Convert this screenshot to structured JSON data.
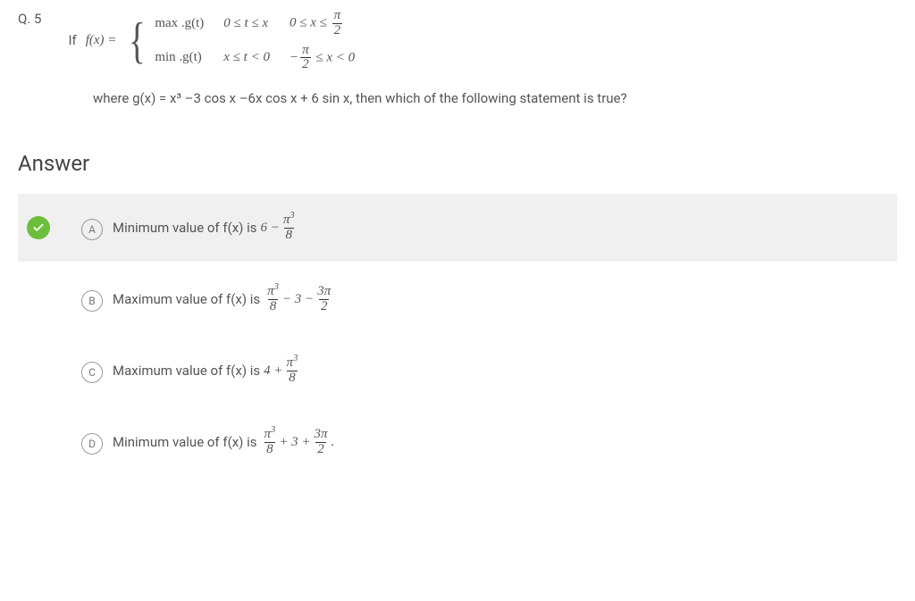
{
  "question": {
    "number": "Q. 5",
    "if_text": "If ",
    "fx_eq": "f(x) =",
    "piece1": {
      "expr": "max .g(t)",
      "cond1": "0 ≤ t ≤ x",
      "cond2_lead": "0 ≤ x ≤",
      "cond2_frac_num": "π",
      "cond2_frac_den": "2"
    },
    "piece2": {
      "expr": "min .g(t)",
      "cond1": "x ≤ t < 0",
      "cond2_lead_num": "π",
      "cond2_lead_den": "2",
      "cond2_tail": " ≤ x < 0"
    },
    "where_line": "where g(x) = x³ –3 cos x –6x cos x + 6 sin x, then which of the following statement is true?"
  },
  "answer_heading": "Answer",
  "correct_letter": "A",
  "colors": {
    "check_bg": "#6cbf3b",
    "highlight_bg": "#f0f0f0",
    "text": "#555555"
  },
  "options": [
    {
      "letter": "A",
      "highlight": true,
      "lead": "Minimum value of f(x) is ",
      "segments": [
        {
          "type": "text",
          "val": "6 − "
        },
        {
          "type": "frac",
          "num": "π³",
          "den": "8"
        }
      ]
    },
    {
      "letter": "B",
      "highlight": false,
      "lead": "Maximum value of f(x) is ",
      "segments": [
        {
          "type": "frac",
          "num": "π³",
          "den": "8"
        },
        {
          "type": "text",
          "val": " − 3 − "
        },
        {
          "type": "frac",
          "num": "3π",
          "den": "2"
        }
      ]
    },
    {
      "letter": "C",
      "highlight": false,
      "lead": "Maximum value of f(x) is ",
      "segments": [
        {
          "type": "text",
          "val": "4 + "
        },
        {
          "type": "frac",
          "num": "π³",
          "den": "8"
        }
      ]
    },
    {
      "letter": "D",
      "highlight": false,
      "lead": "Minimum value of f(x) is ",
      "segments": [
        {
          "type": "frac",
          "num": "π³",
          "den": "8"
        },
        {
          "type": "text",
          "val": " + 3 + "
        },
        {
          "type": "frac",
          "num": "3π",
          "den": "2"
        },
        {
          "type": "text",
          "val": "."
        }
      ]
    }
  ]
}
